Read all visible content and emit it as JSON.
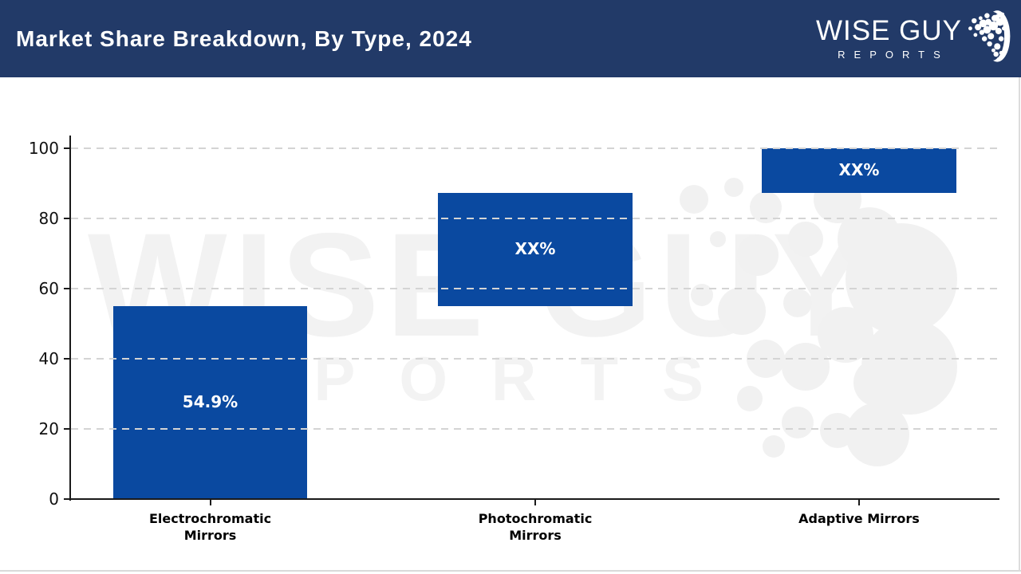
{
  "header": {
    "title": "Market Share Breakdown, By Type, 2024",
    "logo": {
      "wordmark": "WISE GUY",
      "subtext": "REPORTS"
    }
  },
  "watermark": {
    "wordmark": "WISE GUY",
    "subtext": "REPORTS"
  },
  "colors": {
    "header_bg": "#223a68",
    "bar_blue": "#0a49a0",
    "bar_label": "#ffffff",
    "grid": "#d4d4d4",
    "axis": "#1a1a1a",
    "watermark": "#f2f2f2"
  },
  "chart_data": {
    "type": "bar",
    "variant": "floating-waterfall-stacked",
    "title": "Market Share Breakdown, By Type, 2024",
    "categories": [
      "Electrochromatic Mirrors",
      "Photochromatic Mirrors",
      "Adaptive Mirrors"
    ],
    "category_lines": [
      [
        "Electrochromatic",
        "Mirrors"
      ],
      [
        "Photochromatic",
        "Mirrors"
      ],
      [
        "Adaptive Mirrors"
      ]
    ],
    "segments": [
      {
        "category": "Electrochromatic Mirrors",
        "start": 0,
        "end": 54.9,
        "label": "54.9%"
      },
      {
        "category": "Photochromatic Mirrors",
        "start": 54.9,
        "end": 87.3,
        "label": "XX%"
      },
      {
        "category": "Adaptive Mirrors",
        "start": 87.3,
        "end": 100,
        "label": "XX%"
      }
    ],
    "yticks": [
      0,
      20,
      40,
      60,
      80,
      100
    ],
    "ylim": [
      0,
      103.6
    ],
    "xlabel": "",
    "ylabel": "",
    "grid": {
      "horizontal": true,
      "style": "dashed"
    },
    "bar_color": "#0a49a0",
    "legend": null
  }
}
